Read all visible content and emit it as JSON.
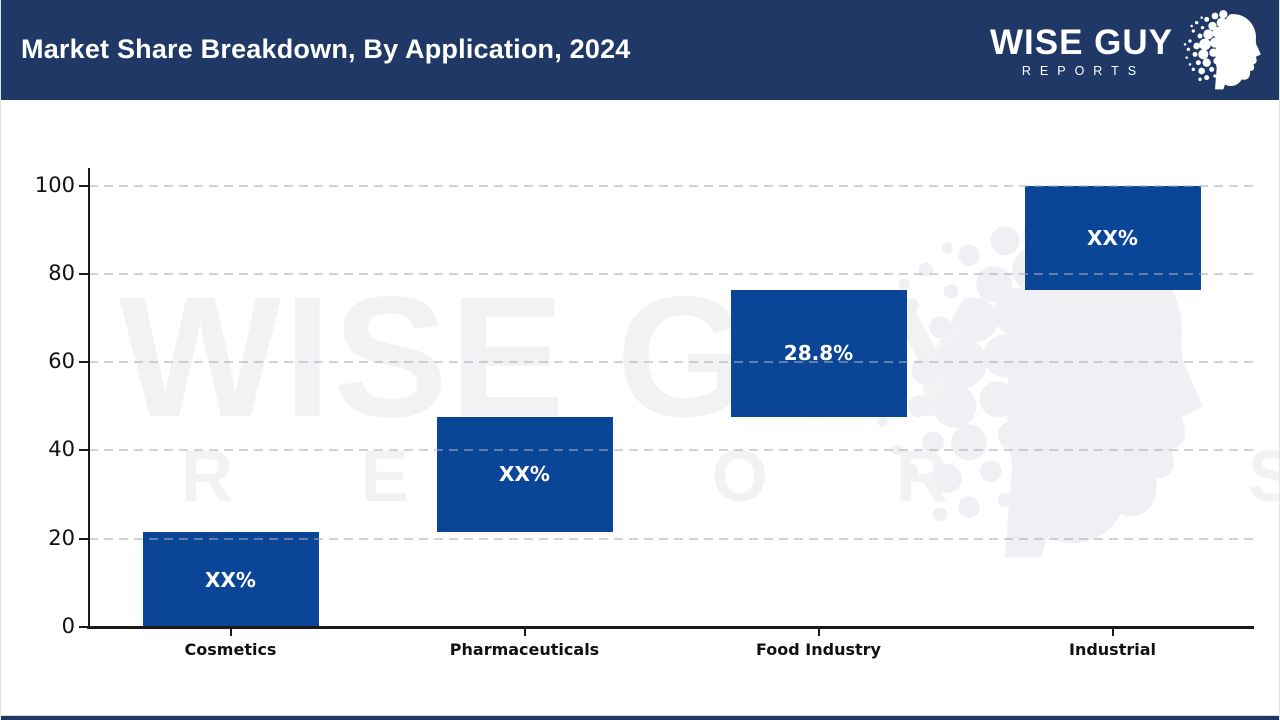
{
  "header": {
    "title": "Market Share Breakdown, By Application, 2024",
    "bg_color": "#1f3866",
    "logo": {
      "line1": "WISE GUY",
      "line2": "REPORTS"
    }
  },
  "watermark": {
    "line1": "WISE GUY",
    "line2": "R E P O R T S"
  },
  "footer": {
    "bar_color": "#1f3866"
  },
  "chart_data": {
    "type": "bar",
    "subtype": "waterfall",
    "title": "Market Share Breakdown, By Application, 2024",
    "categories": [
      "Cosmetics",
      "Pharmaceuticals",
      "Food Industry",
      "Industrial"
    ],
    "series": [
      {
        "name": "Market share (%)",
        "values": [
          21.5,
          26.1,
          28.8,
          23.6
        ],
        "starts": [
          0,
          21.5,
          47.6,
          76.4
        ],
        "ends": [
          21.5,
          47.6,
          76.4,
          100
        ]
      }
    ],
    "bar_labels": [
      "XX%",
      "XX%",
      "28.8%",
      "XX%"
    ],
    "bar_color": "#0b4598",
    "label_color": "#ffffff",
    "xlabel": "",
    "ylabel": "",
    "ylim": [
      0,
      105
    ],
    "yticks": [
      0,
      20,
      40,
      60,
      80,
      100
    ],
    "grid": "horizontal-dashed",
    "gridline_color": "#a8adb8",
    "legend": "none"
  }
}
